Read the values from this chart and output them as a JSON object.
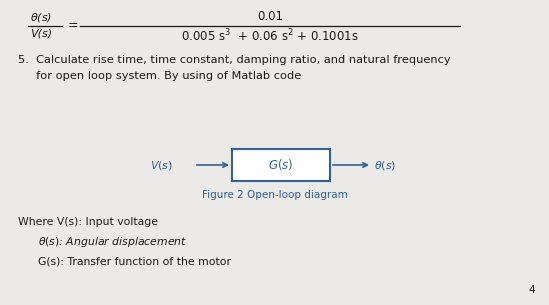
{
  "bg_color": "#eceae6",
  "text_color": "#1a1a1a",
  "arrow_color": "#3060a0",
  "box_color": "#3060a0",
  "caption_color": "#3060a0",
  "page_num": "4",
  "where_line": "Where V(s): Input voltage",
  "theta_desc": "Angular displacement",
  "G_desc": "G(s): Transfer function of the motor",
  "fig_caption": "Figure 2 Open-loop diagram",
  "q5_line1": "5.  Calculate rise time, time constant, damping ratio, and natural frequency",
  "q5_line2": "     for open loop system. By using of Matlab code"
}
